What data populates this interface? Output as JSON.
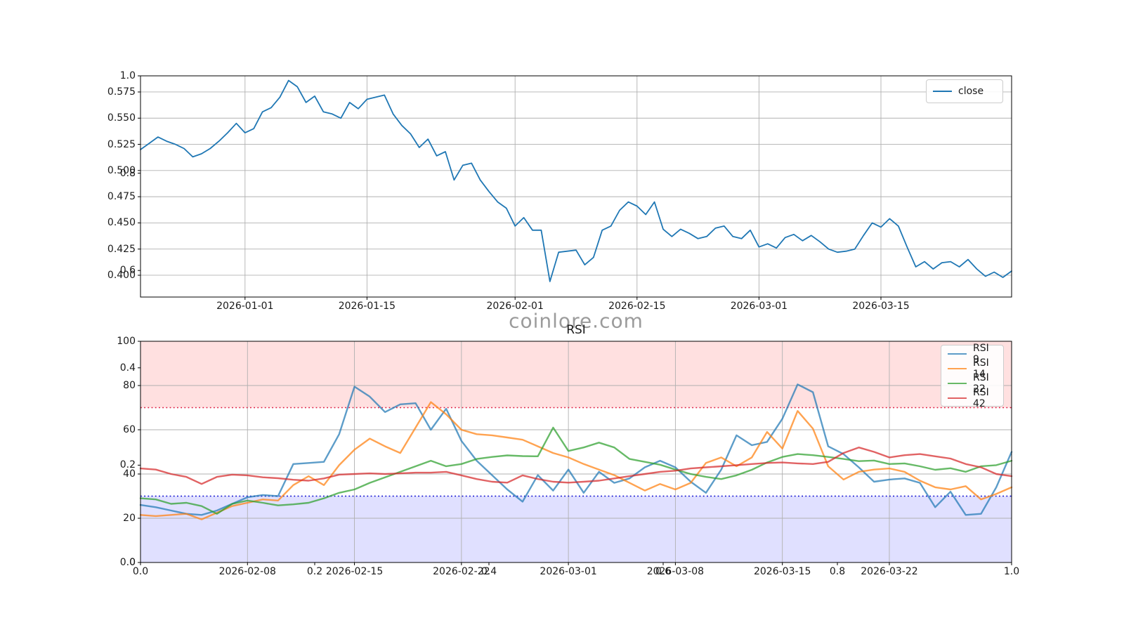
{
  "watermark": {
    "text": "coinlore.com",
    "color": "#9b9b9b"
  },
  "figure_axis": {
    "x_tick_values": [
      0.0,
      0.2,
      0.4,
      0.6,
      0.8,
      1.0
    ],
    "x_tick_labels": [
      "0.0",
      "0.2",
      "0.4",
      "0.6",
      "0.8",
      "1.0"
    ],
    "y_tick_values": [
      1.0,
      0.8,
      0.6,
      0.4,
      0.2,
      0.0
    ],
    "y_tick_labels": [
      "1.0",
      "0.8",
      "0.6",
      "0.4",
      "0.2",
      "0.0"
    ]
  },
  "chart_data": [
    {
      "type": "line",
      "name": "price-chart",
      "title": "",
      "x_start_date": "2025-12-20",
      "x_end_date": "2026-03-30",
      "xlim": [
        0,
        100
      ],
      "ylim": [
        0.3792,
        0.5904
      ],
      "grid": true,
      "legend_position": "upper right",
      "x_tick_indices": [
        12,
        26,
        43,
        57,
        71,
        85
      ],
      "x_tick_labels": [
        "2026-01-01",
        "2026-01-15",
        "2026-02-01",
        "2026-02-15",
        "2026-03-01",
        "2026-03-15"
      ],
      "y_tick_values": [
        0.4,
        0.425,
        0.45,
        0.475,
        0.5,
        0.525,
        0.55,
        0.575
      ],
      "y_tick_labels": [
        "0.400",
        "0.425",
        "0.450",
        "0.475",
        "0.500",
        "0.525",
        "0.550",
        "0.575"
      ],
      "series": [
        {
          "name": "close",
          "color": "#1f77b4",
          "opacity": 1,
          "width": 1.8,
          "values": [
            0.52,
            0.526,
            0.532,
            0.528,
            0.525,
            0.521,
            0.513,
            0.516,
            0.521,
            0.528,
            0.536,
            0.545,
            0.536,
            0.54,
            0.556,
            0.56,
            0.57,
            0.586,
            0.58,
            0.565,
            0.571,
            0.556,
            0.554,
            0.55,
            0.565,
            0.559,
            0.568,
            0.57,
            0.572,
            0.554,
            0.543,
            0.535,
            0.522,
            0.53,
            0.514,
            0.518,
            0.491,
            0.505,
            0.507,
            0.491,
            0.48,
            0.47,
            0.464,
            0.447,
            0.455,
            0.443,
            0.443,
            0.394,
            0.422,
            0.423,
            0.424,
            0.41,
            0.417,
            0.443,
            0.447,
            0.462,
            0.47,
            0.466,
            0.458,
            0.47,
            0.444,
            0.437,
            0.444,
            0.44,
            0.435,
            0.437,
            0.445,
            0.447,
            0.437,
            0.435,
            0.443,
            0.427,
            0.43,
            0.426,
            0.436,
            0.439,
            0.433,
            0.438,
            0.432,
            0.425,
            0.422,
            0.423,
            0.425,
            0.438,
            0.45,
            0.446,
            0.454,
            0.447,
            0.427,
            0.408,
            0.413,
            0.406,
            0.412,
            0.413,
            0.408,
            0.415,
            0.406,
            0.399,
            0.403,
            0.398,
            0.404
          ]
        }
      ]
    },
    {
      "type": "line",
      "name": "rsi-chart",
      "title": "RSI",
      "x_start_date": "2026-02-01",
      "x_end_date": "2026-03-30",
      "xlim": [
        0,
        57
      ],
      "ylim": [
        0,
        100
      ],
      "grid": true,
      "legend_position": "upper right",
      "x_tick_indices": [
        7,
        14,
        21,
        28,
        35,
        42,
        49
      ],
      "x_tick_labels": [
        "2026-02-08",
        "2026-02-15",
        "2026-02-22",
        "2026-03-01",
        "2026-03-08",
        "2026-03-15",
        "2026-03-22"
      ],
      "y_tick_values": [
        0,
        20,
        40,
        60,
        80,
        100
      ],
      "y_tick_labels": [
        "0",
        "20",
        "40",
        "60",
        "80",
        "100"
      ],
      "bands": [
        {
          "name": "overbought-band",
          "from": 70,
          "to": 100,
          "color": "#ff0000",
          "opacity": 0.12
        },
        {
          "name": "oversold-band",
          "from": 0,
          "to": 30,
          "color": "#0000ff",
          "opacity": 0.12
        }
      ],
      "hlines": [
        {
          "name": "overbought-threshold",
          "y": 70,
          "color": "#dc143c"
        },
        {
          "name": "oversold-threshold",
          "y": 30,
          "color": "#0000cd"
        }
      ],
      "series": [
        {
          "name": "RSI 9",
          "color": "#1f77b4",
          "opacity": 0.72,
          "width": 2.4,
          "values": [
            26,
            25,
            23.5,
            22,
            21.5,
            23.5,
            26.5,
            29.5,
            30.5,
            30,
            44.5,
            45,
            45.5,
            58,
            79.5,
            75,
            68,
            71.5,
            72,
            60,
            69.5,
            55,
            46,
            39.5,
            33,
            27.5,
            39.5,
            32.5,
            42,
            31.5,
            41,
            36,
            38,
            43,
            46,
            43,
            36.5,
            31.5,
            42,
            57.5,
            53,
            54.5,
            65,
            80.5,
            77,
            52.5,
            49,
            43,
            36.5,
            37.5,
            38,
            36,
            25,
            32,
            21.5,
            22,
            34,
            50
          ]
        },
        {
          "name": "RSI 14",
          "color": "#ff7f0e",
          "opacity": 0.72,
          "width": 2.4,
          "values": [
            21.5,
            21,
            21.5,
            22,
            19.5,
            22.5,
            25.5,
            27,
            28.5,
            28,
            35,
            39,
            35,
            44,
            51,
            56,
            52.5,
            49.5,
            61,
            72.5,
            67,
            60,
            58,
            57.5,
            56.5,
            55.5,
            52.5,
            49.5,
            47.5,
            44.5,
            42,
            39.5,
            36,
            32.5,
            35.5,
            33,
            36,
            45,
            47.5,
            43.5,
            47.5,
            59,
            51.5,
            68.5,
            60.5,
            43.5,
            37.5,
            41,
            42,
            42.5,
            41,
            37,
            34,
            33,
            34.5,
            28.5,
            31,
            34
          ]
        },
        {
          "name": "RSI 22",
          "color": "#2ca02c",
          "opacity": 0.72,
          "width": 2.4,
          "values": [
            29,
            28.5,
            26.5,
            27,
            25.5,
            22,
            26.5,
            28,
            27,
            25.8,
            26.3,
            27,
            29,
            31.5,
            33,
            36,
            38.5,
            41,
            43.5,
            46,
            43.5,
            44.5,
            46.8,
            47.7,
            48.4,
            48.1,
            48,
            61,
            50.4,
            52,
            54.2,
            52,
            46.8,
            45.5,
            44.2,
            42,
            40,
            38.7,
            37.7,
            39.4,
            41.9,
            45.2,
            47.7,
            49,
            48.5,
            47.7,
            46.8,
            45.8,
            46.1,
            44.5,
            44.8,
            43.5,
            41.9,
            42.6,
            41,
            43.5,
            44,
            46
          ]
        },
        {
          "name": "RSI 42",
          "color": "#d62728",
          "opacity": 0.72,
          "width": 2.4,
          "values": [
            42.5,
            42,
            40,
            38.7,
            35.5,
            38.7,
            39.7,
            39.4,
            38.5,
            38.1,
            37.4,
            37,
            38,
            39.7,
            40,
            40.3,
            40,
            40.3,
            40.6,
            40.6,
            41,
            39.4,
            37.7,
            36.5,
            36.1,
            39.4,
            37.7,
            36.5,
            36.1,
            36.5,
            37,
            38,
            39,
            40,
            41,
            41.5,
            42.5,
            43,
            43.5,
            44,
            44.5,
            45,
            45.2,
            44.8,
            44.5,
            45.5,
            49.5,
            52,
            50,
            47.5,
            48.5,
            49,
            48,
            47,
            44.5,
            43,
            40,
            39
          ]
        }
      ]
    }
  ]
}
